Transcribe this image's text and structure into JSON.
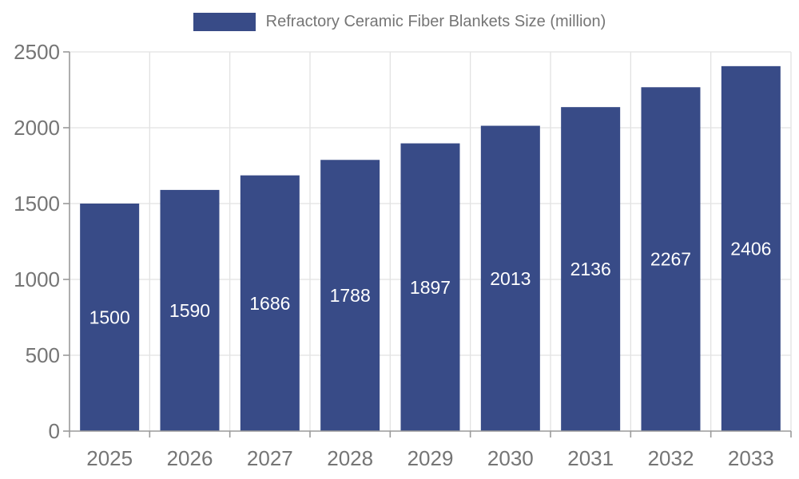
{
  "colors": {
    "bar": "#384B87",
    "grid": "#e2e2e2",
    "axis": "#9a9a9a",
    "tick_label": "#757575",
    "value_label": "#ffffff",
    "background": "#ffffff"
  },
  "chart_data": {
    "type": "bar",
    "title": "",
    "legend": [
      "Refractory Ceramic Fiber Blankets Size (million)"
    ],
    "legend_position": "top-center",
    "categories": [
      "2025",
      "2026",
      "2027",
      "2028",
      "2029",
      "2030",
      "2031",
      "2032",
      "2033"
    ],
    "series": [
      {
        "name": "Refractory Ceramic Fiber Blankets Size (million)",
        "values": [
          1500,
          1590,
          1686,
          1788,
          1897,
          2013,
          2136,
          2267,
          2406
        ]
      }
    ],
    "bar_labels_shown": true,
    "bar_color": "#384B87",
    "bar_label_color": "#ffffff",
    "xlabel": "",
    "ylabel": "",
    "ylim": [
      0,
      2500
    ],
    "yticks": [
      0,
      500,
      1000,
      1500,
      2000,
      2500
    ],
    "grid": true
  }
}
